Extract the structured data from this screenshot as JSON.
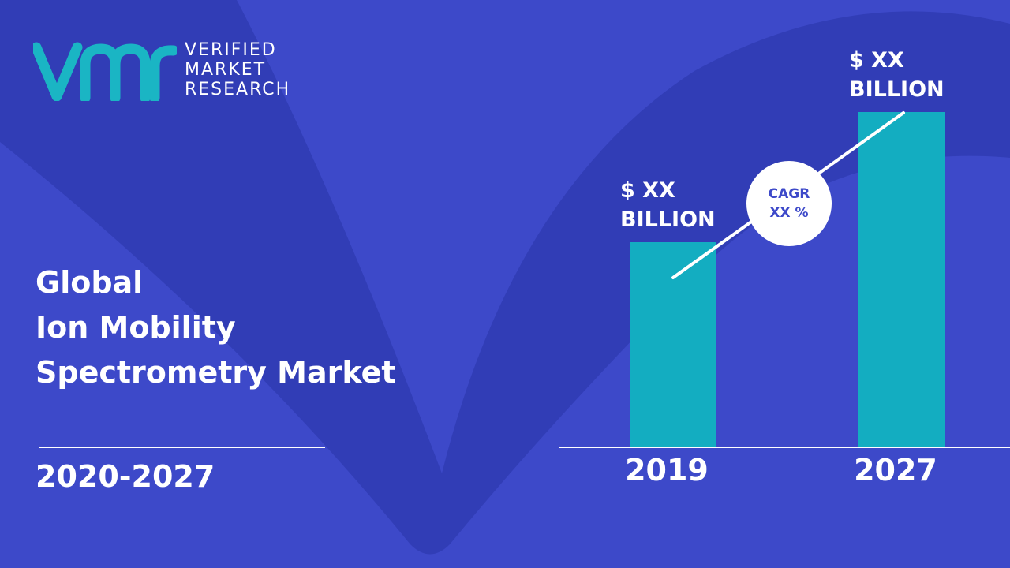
{
  "logo": {
    "line1": "VERIFIED",
    "line2": "MARKET",
    "line3": "RESEARCH",
    "mark_color": "#1ab5c4"
  },
  "title_lines": [
    "Global",
    "Ion Mobility",
    "Spectrometry Market"
  ],
  "period": "2020-2027",
  "cagr": {
    "line1": "CAGR",
    "line2": "XX %"
  },
  "colors": {
    "background": "#3d49c9",
    "background_shape": "#2f3bb3",
    "bar": "#13adc1",
    "text": "#ffffff"
  },
  "chart_data": {
    "type": "bar",
    "categories": [
      "2019",
      "2027"
    ],
    "value_labels": [
      "$ XX\nBILLION",
      "$ XX\nBILLION"
    ],
    "values": [
      0.52,
      0.85
    ],
    "grid": false
  }
}
